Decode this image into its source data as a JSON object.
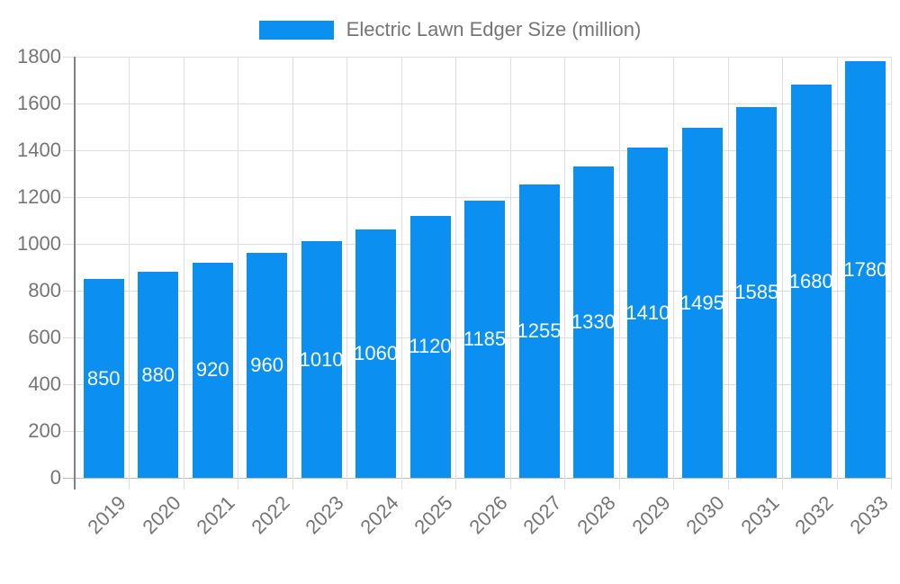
{
  "chart_data": {
    "type": "bar",
    "title": "Electric Lawn Edger Size (million)",
    "categories": [
      "2019",
      "2020",
      "2021",
      "2022",
      "2023",
      "2024",
      "2025",
      "2026",
      "2027",
      "2028",
      "2029",
      "2030",
      "2031",
      "2032",
      "2033"
    ],
    "values": [
      850,
      880,
      920,
      960,
      1010,
      1060,
      1120,
      1185,
      1255,
      1330,
      1410,
      1495,
      1585,
      1680,
      1780
    ],
    "xlabel": "",
    "ylabel": "",
    "ylim": [
      0,
      1800
    ],
    "yticks": [
      0,
      200,
      400,
      600,
      800,
      1000,
      1200,
      1400,
      1600,
      1800
    ],
    "legend_position": "top",
    "grid": true,
    "data_labels": "inside-center",
    "x_label_rotation_deg": -45,
    "colors": {
      "bar": "#0b90f1",
      "data_label": "#ffffff",
      "axis_text": "#757575",
      "legend_text": "#757575",
      "gridline": "#dedede",
      "zero_line": "#bdbdbd",
      "axis_line": "#808080",
      "background": "#ffffff"
    }
  }
}
